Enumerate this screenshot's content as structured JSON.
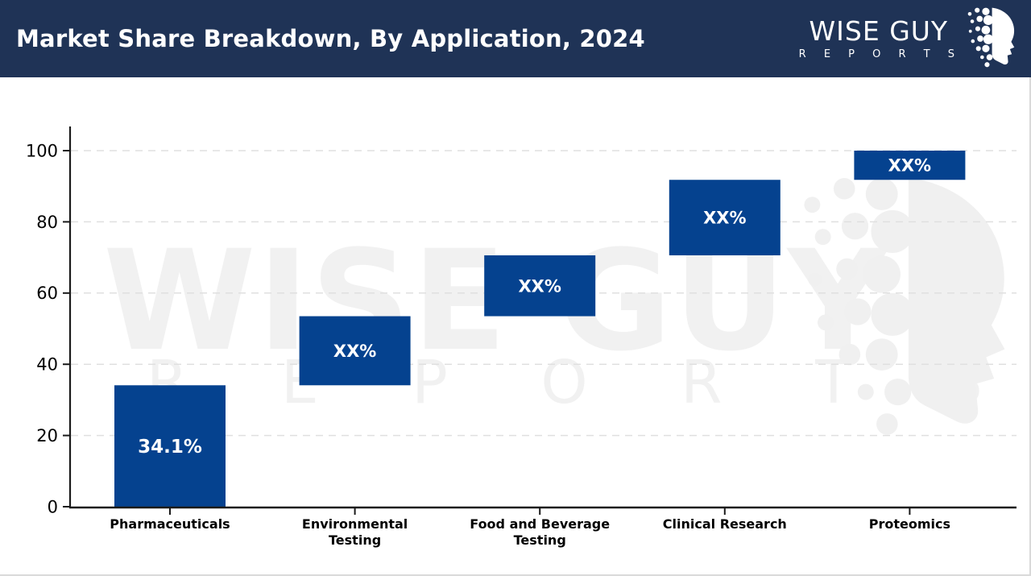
{
  "header": {
    "title": "Market Share Breakdown, By Application, 2024",
    "bg_color": "#1f3356",
    "logo": {
      "line1": "WISE GUY",
      "line2": "R E P O R T S"
    }
  },
  "watermark": {
    "line1": "WISE GUY",
    "line2": "R E P O R T S"
  },
  "chart_data": {
    "type": "bar",
    "subtype": "waterfall",
    "title": "Market Share Breakdown, By Application, 2024",
    "xlabel": "",
    "ylabel": "",
    "categories": [
      "Pharmaceuticals",
      "Environmental Testing",
      "Food and Beverage Testing",
      "Clinical Research",
      "Proteomics"
    ],
    "categories_lines": [
      [
        "Pharmaceuticals"
      ],
      [
        "Environmental",
        "Testing"
      ],
      [
        "Food and Beverage",
        "Testing"
      ],
      [
        "Clinical Research"
      ],
      [
        "Proteomics"
      ]
    ],
    "segments": [
      {
        "category": "Pharmaceuticals",
        "start": 0,
        "end": 34.1,
        "value": 34.1,
        "label": "34.1%"
      },
      {
        "category": "Environmental Testing",
        "start": 34.1,
        "end": 53.5,
        "value": 19.4,
        "label": "XX%"
      },
      {
        "category": "Food and Beverage Testing",
        "start": 53.5,
        "end": 70.6,
        "value": 17.1,
        "label": "XX%"
      },
      {
        "category": "Clinical Research",
        "start": 70.6,
        "end": 91.8,
        "value": 21.2,
        "label": "XX%"
      },
      {
        "category": "Proteomics",
        "start": 91.8,
        "end": 100,
        "value": 8.2,
        "label": "XX%"
      }
    ],
    "yticks": [
      0,
      20,
      40,
      60,
      80,
      100
    ],
    "ylim": [
      0,
      107
    ],
    "bar_color": "#05428f",
    "bar_label_color": "#ffffff",
    "axis_color": "#1a1a1a",
    "grid_color": "#e0e0e0",
    "grid_style": "dashed horizontal",
    "legend": "none"
  }
}
